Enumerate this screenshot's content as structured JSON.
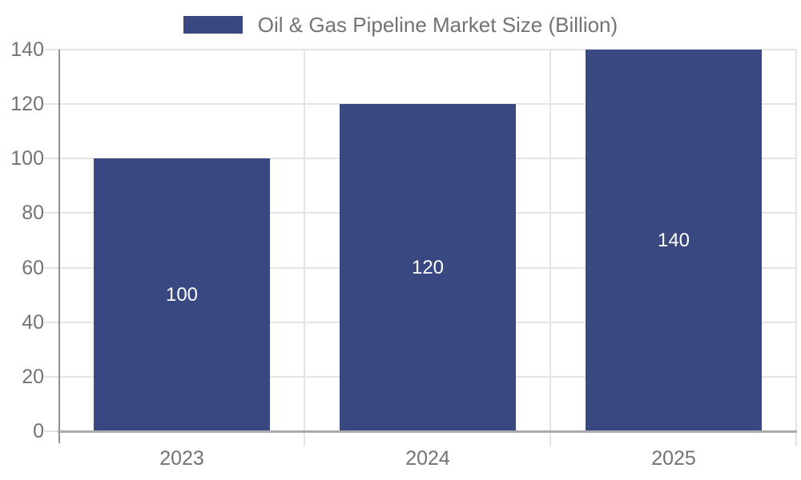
{
  "legend": {
    "label": "Oil & Gas Pipeline Market Size (Billion)"
  },
  "chart_data": {
    "type": "bar",
    "title": "Oil & Gas Pipeline Market Size (Billion)",
    "categories": [
      "2023",
      "2024",
      "2025"
    ],
    "values": [
      100,
      120,
      140
    ],
    "value_labels": [
      "100",
      "120",
      "140"
    ],
    "xlabel": "",
    "ylabel": "",
    "ylim": [
      0,
      140
    ],
    "yticks": [
      0,
      20,
      40,
      60,
      80,
      100,
      120,
      140
    ],
    "grid": true,
    "legend_position": "top",
    "colors": {
      "bar": "#394880",
      "value_label": "#ffffff",
      "axis_text": "#737373",
      "gridline": "#e4e4e4",
      "y_axis_line": "#8f8f8f",
      "x_axis_line": "#ababab"
    }
  }
}
